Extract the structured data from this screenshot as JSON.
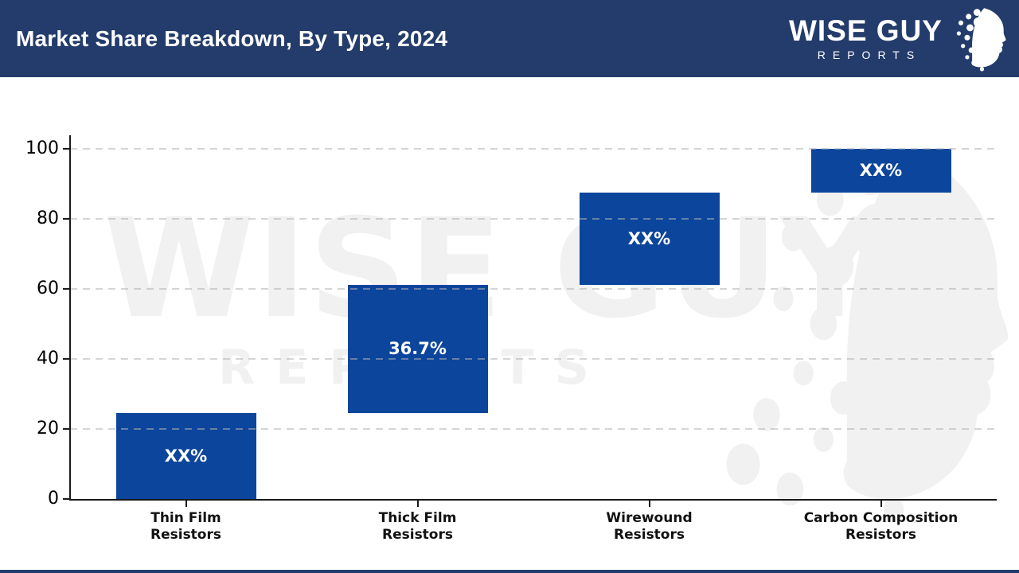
{
  "header": {
    "title": "Market Share Breakdown, By Type, 2024",
    "logo_line1": "WISE GUY",
    "logo_line2": "REPORTS"
  },
  "watermark": {
    "line1": "WISE GUY",
    "line2": "REPORTS"
  },
  "colors": {
    "header_bg": "#233c6b",
    "bar_blue": "#0c459c",
    "grid_gray": "#d9d9d9",
    "axis_black": "#1a1a1a",
    "watermark_gray": "#f1f1f1",
    "bar_label_white": "#ffffff"
  },
  "chart_data": {
    "type": "bar",
    "subtype": "waterfall-stacked-segments",
    "title": "Market Share Breakdown, By Type, 2024",
    "xlabel": "",
    "ylabel": "",
    "ylim": [
      0,
      100
    ],
    "yticks": [
      0,
      20,
      40,
      60,
      80,
      100
    ],
    "grid": "horizontal-dashed",
    "legend": "none",
    "categories": [
      "Thin Film Resistors",
      "Thick Film Resistors",
      "Wirewound Resistors",
      "Carbon Composition Resistors"
    ],
    "category_lines": [
      [
        "Thin Film",
        "Resistors"
      ],
      [
        "Thick Film",
        "Resistors"
      ],
      [
        "Wirewound",
        "Resistors"
      ],
      [
        "Carbon Composition",
        "Resistors"
      ]
    ],
    "segments": [
      {
        "category": "Thin Film Resistors",
        "start": 0,
        "end": 24.5,
        "value": 24.5,
        "label": "XX%"
      },
      {
        "category": "Thick Film Resistors",
        "start": 24.5,
        "end": 61.2,
        "value": 36.7,
        "label": "36.7%"
      },
      {
        "category": "Wirewound Resistors",
        "start": 61.2,
        "end": 87.6,
        "value": 26.4,
        "label": "XX%"
      },
      {
        "category": "Carbon Composition Resistors",
        "start": 87.6,
        "end": 100,
        "value": 12.4,
        "label": "XX%"
      }
    ]
  }
}
